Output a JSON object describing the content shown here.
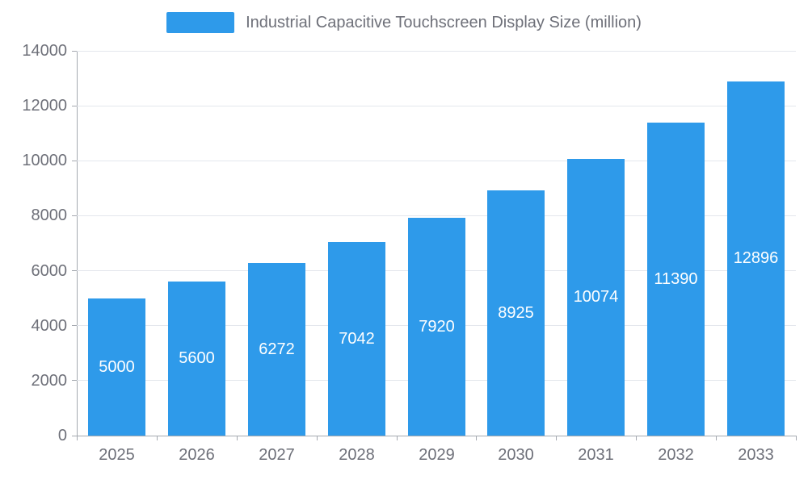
{
  "chart_data": {
    "type": "bar",
    "title": "Industrial Capacitive Touchscreen Display Size (million)",
    "categories": [
      "2025",
      "2026",
      "2027",
      "2028",
      "2029",
      "2030",
      "2031",
      "2032",
      "2033"
    ],
    "values": [
      5000,
      5600,
      6272,
      7042,
      7920,
      8925,
      10074,
      11390,
      12896
    ],
    "xlabel": "",
    "ylabel": "",
    "ylim": [
      0,
      14000
    ],
    "ytick_step": 2000,
    "grid": true,
    "legend_position": "top-center",
    "bar_color": "#2E9AEA",
    "bar_label_color": "#ffffff",
    "axis_text_color": "#6E7079",
    "grid_color": "#E4E7ED",
    "axis_line_color": "#A5A9B0",
    "background_color": "#ffffff"
  }
}
